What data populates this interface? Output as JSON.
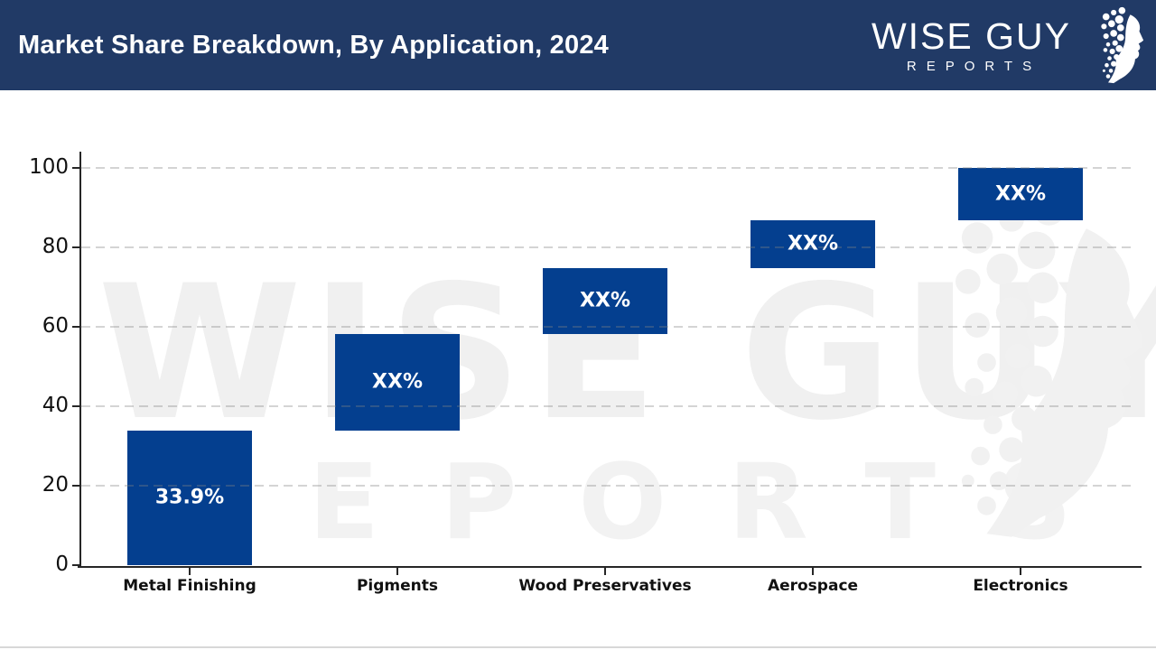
{
  "header": {
    "title": "Market Share Breakdown, By Application, 2024",
    "logo": {
      "line1": "WISE GUY",
      "line2": "REPORTS"
    }
  },
  "watermark": {
    "line1": "WISE GUY",
    "line2": "REPORTS"
  },
  "colors": {
    "header_bg": "#213a66",
    "bar_blue": "#043f8f",
    "grid_gray": "#d6d6d6",
    "label_white": "#ffffff",
    "text_black": "#111111"
  },
  "chart_data": {
    "type": "bar",
    "subtype": "floating-waterfall",
    "title": "Market Share Breakdown, By Application, 2024",
    "xlabel": "",
    "ylabel": "",
    "ylim": [
      0,
      104
    ],
    "y_ticks": [
      0,
      20,
      40,
      60,
      80,
      100
    ],
    "grid": "horizontal-dashed-over-bars",
    "legend": "none",
    "categories": [
      "Metal Finishing",
      "Pigments",
      "Wood Preservatives",
      "Aerospace",
      "Electronics"
    ],
    "bars": [
      {
        "category": "Metal Finishing",
        "start": 0,
        "end": 33.9,
        "size": 33.9,
        "label": "33.9%"
      },
      {
        "category": "Pigments",
        "start": 33.9,
        "end": 58.2,
        "size": 24.3,
        "label": "XX%"
      },
      {
        "category": "Wood Preservatives",
        "start": 58.2,
        "end": 74.8,
        "size": 16.6,
        "label": "XX%"
      },
      {
        "category": "Aerospace",
        "start": 74.8,
        "end": 86.8,
        "size": 12.0,
        "label": "XX%"
      },
      {
        "category": "Electronics",
        "start": 86.8,
        "end": 100,
        "size": 13.2,
        "label": "XX%"
      }
    ],
    "bar_color": "#043f8f",
    "value_label_color": "#ffffff"
  }
}
